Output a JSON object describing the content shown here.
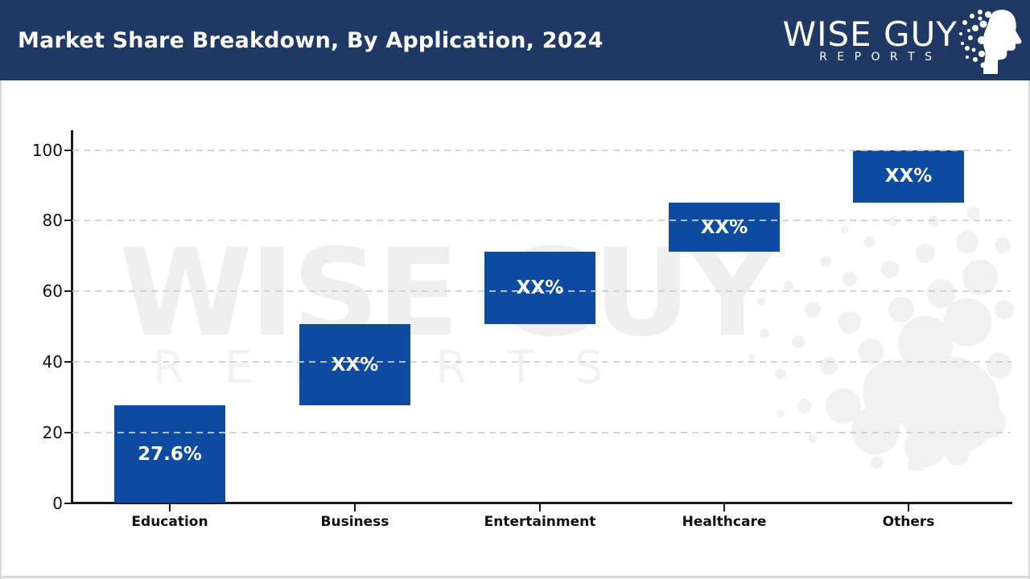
{
  "header": {
    "title": "Market Share Breakdown, By Application, 2024",
    "logo": {
      "line1": "WISE GUY",
      "line2": "R E P O R T S",
      "icon": "face-profile-dots-icon"
    }
  },
  "watermark": {
    "line1": "WISE GUY",
    "line2": "R E P O R T S",
    "icon": "head-dots-icon"
  },
  "chart_data": {
    "type": "bar",
    "subtype": "floating-waterfall",
    "title": "Market Share Breakdown, By Application, 2024",
    "categories": [
      "Education",
      "Business",
      "Entertainment",
      "Healthcare",
      "Others"
    ],
    "bars": [
      {
        "category": "Education",
        "start": 0,
        "end": 27.6,
        "value": 27.6,
        "label": "27.6%"
      },
      {
        "category": "Business",
        "start": 27.6,
        "end": 50.6,
        "value": 23.0,
        "label": "XX%"
      },
      {
        "category": "Entertainment",
        "start": 50.6,
        "end": 71.2,
        "value": 20.6,
        "label": "XX%"
      },
      {
        "category": "Healthcare",
        "start": 71.2,
        "end": 85.0,
        "value": 13.8,
        "label": "XX%"
      },
      {
        "category": "Others",
        "start": 85.0,
        "end": 100,
        "value": 15.0,
        "label": "XX%"
      }
    ],
    "ylim": [
      0,
      100
    ],
    "yticks": [
      0,
      20,
      40,
      60,
      80,
      100
    ],
    "xlabel": "",
    "ylabel": "",
    "grid": "horizontal-dashed",
    "legend": "none",
    "bar_color": "#0c4b9f",
    "bar_label_color": "#ffffff",
    "header_color": "#1f3864"
  }
}
